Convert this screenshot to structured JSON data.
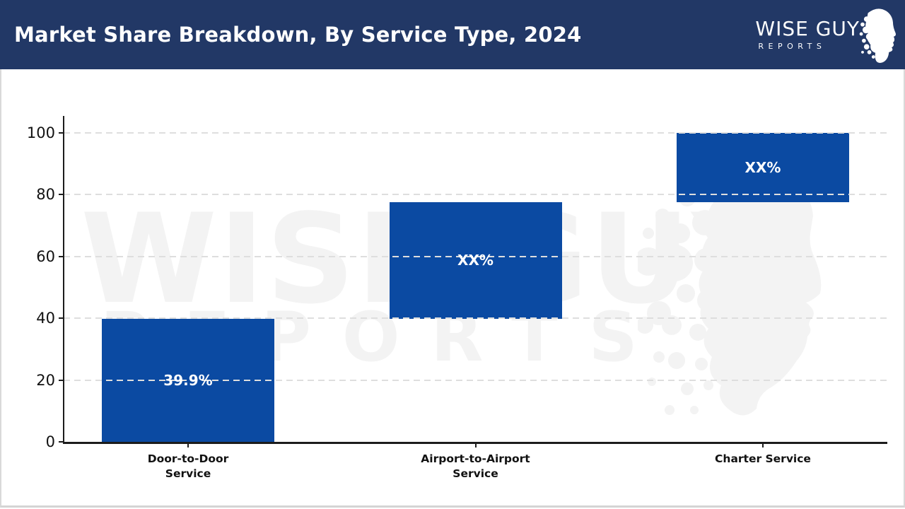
{
  "header": {
    "title": "Market Share Breakdown, By Service Type, 2024",
    "logo": {
      "line1": "WISE GUY",
      "line2": "REPORTS"
    }
  },
  "watermark": {
    "line1": "WISE GUY",
    "line2": "REPORTS"
  },
  "chart_data": {
    "type": "bar",
    "subtype": "waterfall",
    "title": "Market Share Breakdown, By Service Type, 2024",
    "categories": [
      "Door-to-Door\nService",
      "Airport-to-Airport\nService",
      "Charter Service"
    ],
    "bars": [
      {
        "category": "Door-to-Door Service",
        "start": 0,
        "end": 39.9,
        "label": "39.9%"
      },
      {
        "category": "Airport-to-Airport Service",
        "start": 39.9,
        "end": 77.6,
        "label": "XX%"
      },
      {
        "category": "Charter Service",
        "start": 77.6,
        "end": 100,
        "label": "XX%"
      }
    ],
    "ylim": [
      0,
      100
    ],
    "yticks": [
      0,
      20,
      40,
      60,
      80,
      100
    ],
    "grid": "horizontal-dashed",
    "legend": "none",
    "bar_color": "#0b4aa2",
    "value_label_color": "#ffffff"
  },
  "colors": {
    "header_bg": "#223866",
    "bar": "#0b4aa2",
    "grid": "#dedede",
    "axis": "#1c1c1c",
    "watermark": "#f3f3f3",
    "tick_text": "#111111"
  }
}
